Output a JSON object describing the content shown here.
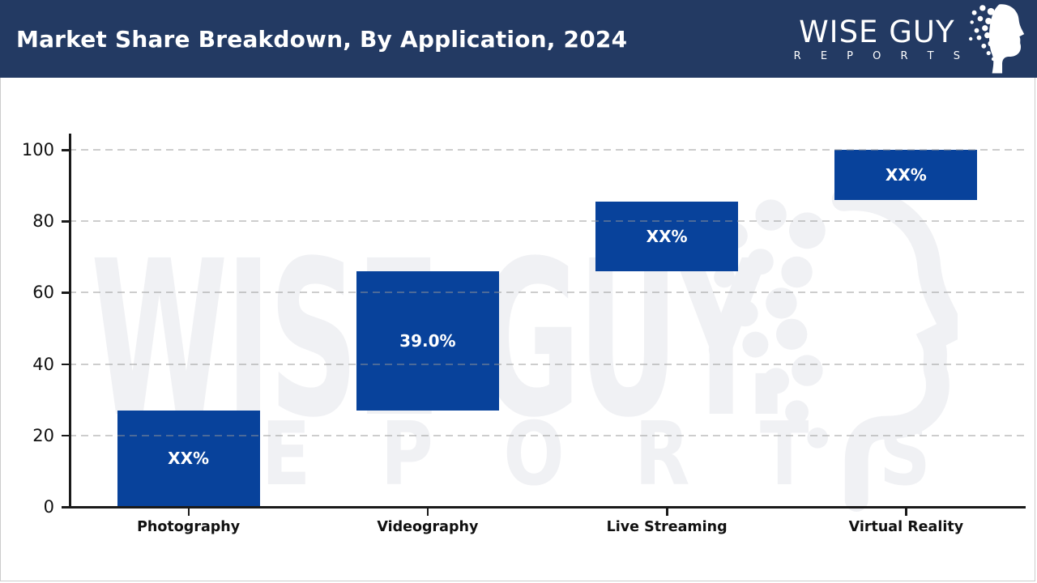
{
  "header": {
    "title": "Market Share Breakdown, By Application, 2024",
    "logo": {
      "wordmark": "WISE GUY",
      "sub": "R E P O R T S"
    }
  },
  "watermark": {
    "wordmark": "WISE GUY.",
    "sub": "R E P O R T S"
  },
  "colors": {
    "header_bg": "#233a63",
    "bar_fill": "#08429b",
    "watermark": "#f0f1f4",
    "axis": "#1a1a1a",
    "gridline": "rgba(150,150,150,0.48)"
  },
  "chart_data": {
    "type": "bar",
    "subtype": "waterfall-floating-bars",
    "title": "Market Share Breakdown, By Application, 2024",
    "xlabel": "",
    "ylabel": "",
    "categories": [
      "Photography",
      "Videography",
      "Live Streaming",
      "Virtual Reality"
    ],
    "segments": [
      {
        "category": "Photography",
        "start": 0,
        "end": 27,
        "label": "XX%"
      },
      {
        "category": "Videography",
        "start": 27,
        "end": 66,
        "label": "39.0%",
        "value": 39.0
      },
      {
        "category": "Live Streaming",
        "start": 66,
        "end": 85.5,
        "label": "XX%"
      },
      {
        "category": "Virtual Reality",
        "start": 86,
        "end": 100,
        "label": "XX%"
      }
    ],
    "y_ticks": [
      0,
      20,
      40,
      60,
      80,
      100
    ],
    "ylim": [
      0,
      104
    ],
    "grid": "horizontal-dashed",
    "legend": "none"
  }
}
